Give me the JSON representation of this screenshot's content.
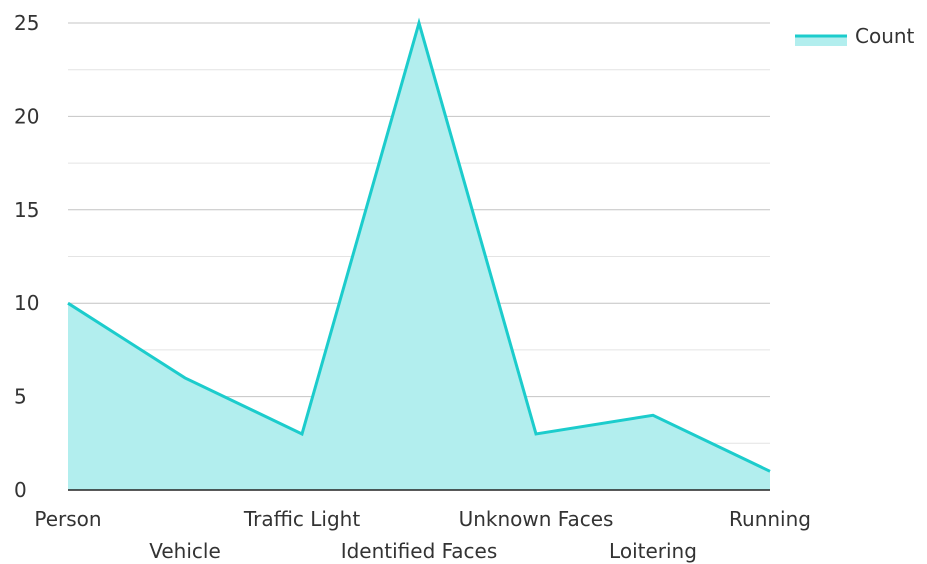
{
  "chart_data": {
    "type": "area",
    "title": "",
    "xlabel": "",
    "ylabel": "",
    "categories": [
      "Person",
      "Vehicle",
      "Traffic Light",
      "Identified Faces",
      "Unknown Faces",
      "Loitering",
      "Running"
    ],
    "series": [
      {
        "name": "Count",
        "values": [
          10,
          6,
          3,
          25,
          3,
          4,
          1
        ],
        "color": "#1ccccc",
        "fill_color": "#b2eeee"
      }
    ],
    "ylim": [
      0,
      25
    ],
    "y_ticks": [
      "0",
      "5",
      "10",
      "15",
      "20",
      "25"
    ],
    "grid": true,
    "legend_position": "top-right"
  }
}
